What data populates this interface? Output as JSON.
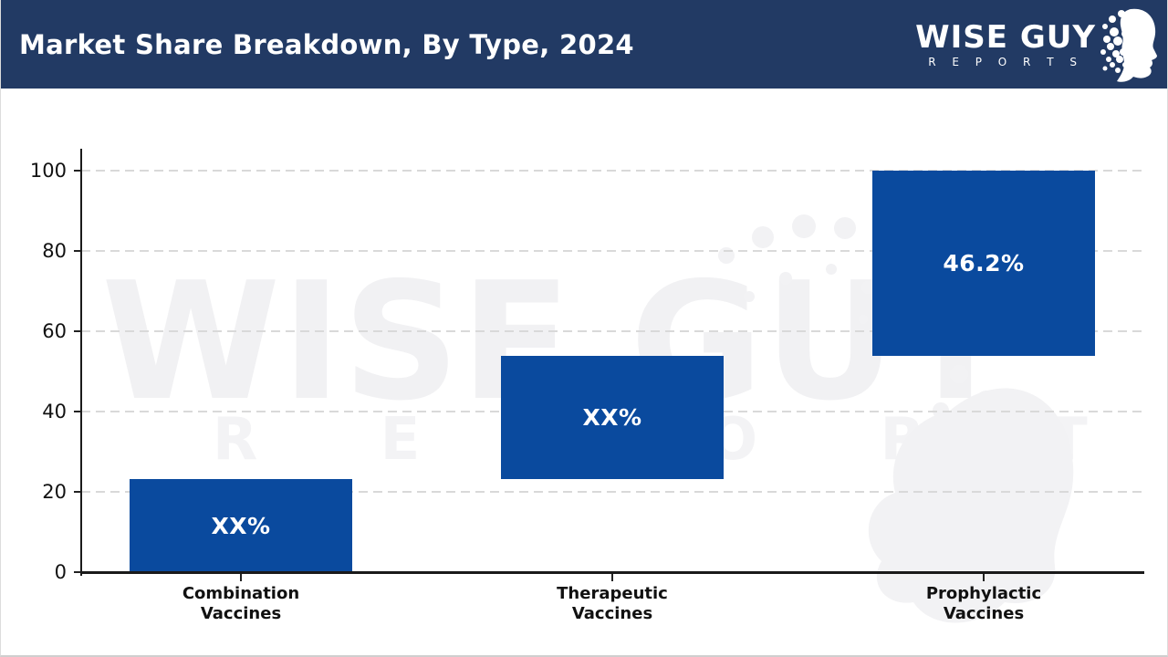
{
  "header": {
    "title": "Market Share Breakdown, By Type, 2024",
    "bg_color": "#223a64",
    "logo": {
      "line1": "WISE GUY",
      "line2": "R E P O R T S",
      "icon": "dotted-face-profile"
    }
  },
  "watermark": {
    "line1": "WISE GUY",
    "line2": "R E P O R T S",
    "color": "#f1f1f3"
  },
  "chart_data": {
    "type": "bar",
    "subtype": "waterfall",
    "title": "Market Share Breakdown, By Type, 2024",
    "categories": [
      [
        "Combination",
        "Vaccines"
      ],
      [
        "Therapeutic",
        "Vaccines"
      ],
      [
        "Prophylactic",
        "Vaccines"
      ]
    ],
    "bars": [
      {
        "category": "Combination Vaccines",
        "start": 0,
        "end": 23.1,
        "label": "XX%"
      },
      {
        "category": "Therapeutic Vaccines",
        "start": 23.1,
        "end": 53.8,
        "label": "XX%"
      },
      {
        "category": "Prophylactic Vaccines",
        "start": 53.8,
        "end": 100,
        "label": "46.2%"
      }
    ],
    "bar_color": "#0a4a9e",
    "bar_label_color": "#ffffff",
    "ylim": [
      0,
      105.5
    ],
    "yticks": [
      0,
      20,
      40,
      60,
      80,
      100
    ],
    "grid": "horizontal-dashed",
    "gridline_color": "#d9d9d9",
    "axis_color": "#1a1a1a",
    "legend": "none"
  }
}
